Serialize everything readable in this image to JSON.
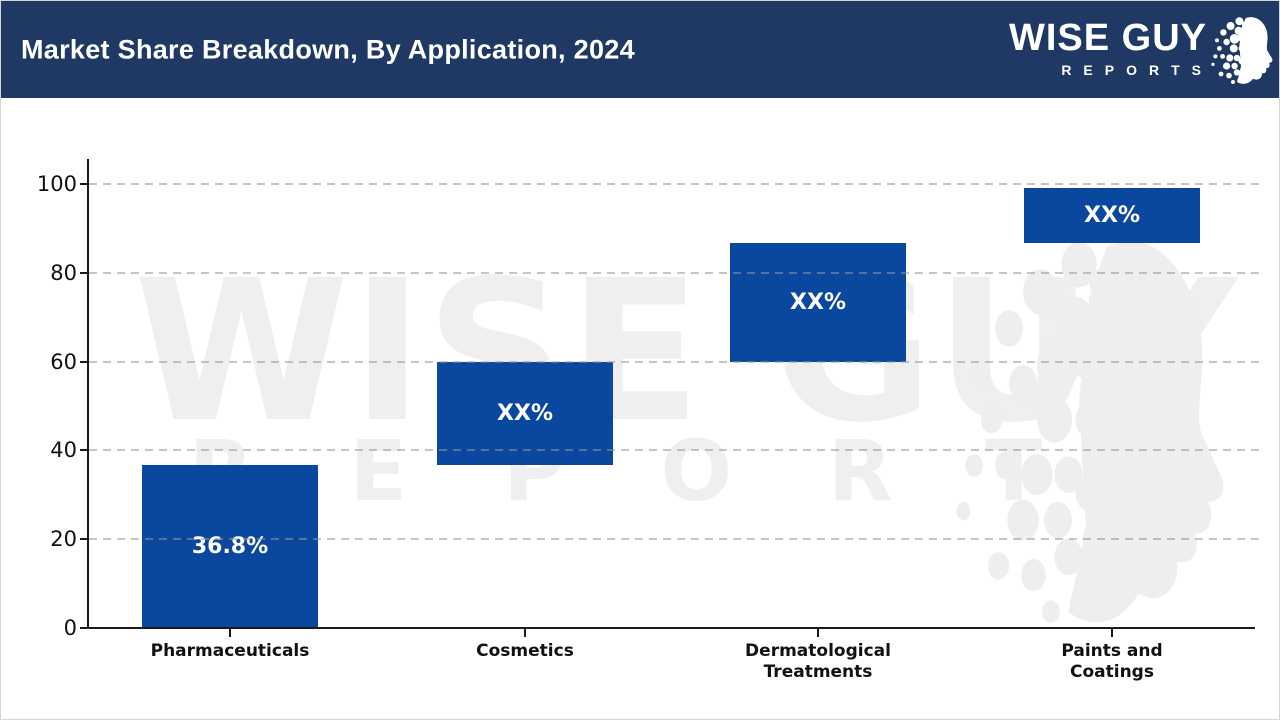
{
  "header": {
    "title": "Market Share Breakdown, By Application, 2024",
    "background_color": "#1f3864",
    "text_color": "#ffffff",
    "brand": {
      "name": "WISE GUY",
      "subtitle": "REPORTS"
    }
  },
  "watermark": {
    "line1": "WISE GUY",
    "line2": "REPORTS"
  },
  "chart_data": {
    "type": "bar",
    "subtype": "floating-waterfall",
    "title": "Market Share Breakdown, By Application, 2024",
    "categories": [
      "Pharmaceuticals",
      "Cosmetics",
      "Dermatological Treatments",
      "Paints and Coatings"
    ],
    "segments": [
      {
        "category": "Pharmaceuticals",
        "start": 0,
        "end": 36.8,
        "label": "36.8%"
      },
      {
        "category": "Cosmetics",
        "start": 36.8,
        "end": 60,
        "label": "XX%"
      },
      {
        "category": "Dermatological Treatments",
        "start": 60,
        "end": 86.8,
        "label": "XX%"
      },
      {
        "category": "Paints and Coatings",
        "start": 86.8,
        "end": 99,
        "label": "XX%"
      }
    ],
    "xlabel": "",
    "ylabel": "",
    "ylim": [
      0,
      100
    ],
    "yticks": [
      0,
      20,
      40,
      60,
      80,
      100
    ],
    "grid": {
      "axis": "y",
      "style": "dashed"
    },
    "legend": false,
    "bar_color": "#0a479e",
    "bar_label_color": "#ffffff",
    "axis_color": "#1a1a1a",
    "tick_label_color": "#111111"
  }
}
